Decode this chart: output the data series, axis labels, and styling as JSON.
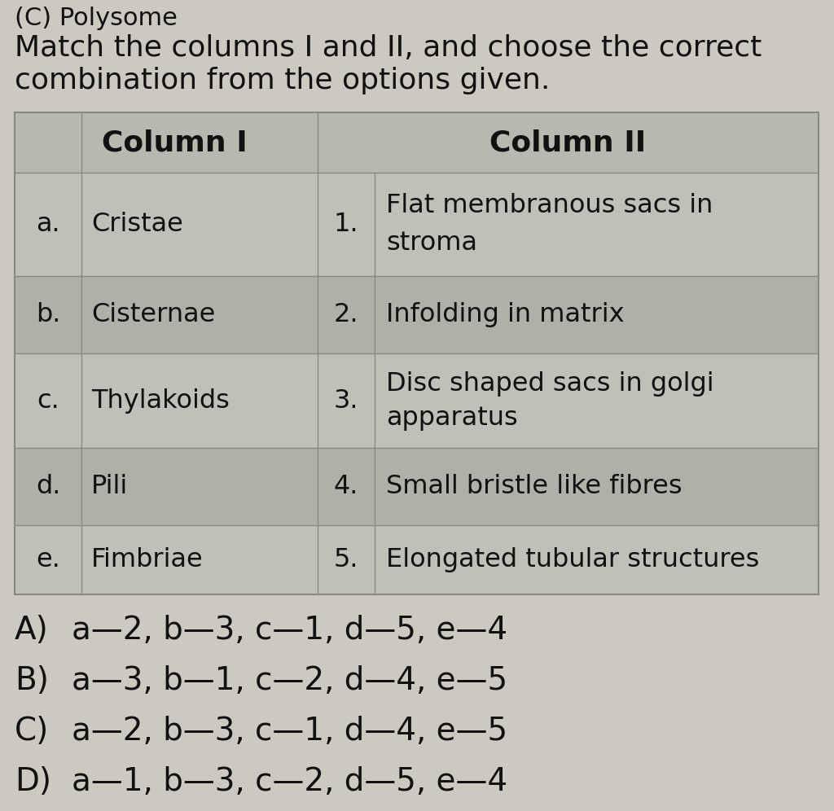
{
  "title_line1": "(C) Polysome",
  "title_line2a": "Match the columns I and II, and choose the correct",
  "title_line2b": "combination from the options given.",
  "col1_header": "Column I",
  "col2_header": "Column II",
  "column1_letters": [
    "a.",
    "b.",
    "c.",
    "d.",
    "e."
  ],
  "column1_words": [
    "Cristae",
    "Cisternae",
    "Thylakoids",
    "Pili",
    "Fimbriae"
  ],
  "column2_numbers": [
    "1.",
    "2.",
    "3.",
    "4.",
    "5."
  ],
  "column2_lines": [
    [
      "Flat membranous sacs in",
      "stroma"
    ],
    [
      "Infolding in matrix",
      ""
    ],
    [
      "Disc shaped sacs in golgi",
      "apparatus"
    ],
    [
      "Small bristle like fibres",
      ""
    ],
    [
      "Elongated tubular structures",
      ""
    ]
  ],
  "options_labels": [
    "A)",
    "B)",
    "C)",
    "D)"
  ],
  "options_text": [
    "a—2, b—3, c—1, d—5, e—4",
    "a—3, b—1, c—2, d—4, e—5",
    "a—2, b—3, c—1, d—4, e—5",
    "a—1, b—3, c—2, d—5, e—4"
  ],
  "page_bg": "#cccac0",
  "table_bg_light": "#c0bfb8",
  "table_bg_dark": "#b0afa8",
  "header_bg": "#b8b7b0",
  "grid_color": "#888884",
  "text_color": "#111111"
}
